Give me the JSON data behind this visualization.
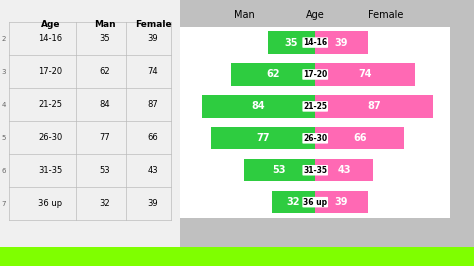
{
  "age_groups": [
    "36 up",
    "31-35",
    "26-30",
    "21-25",
    "17-20",
    "14-16"
  ],
  "man_values": [
    32,
    53,
    77,
    84,
    62,
    35
  ],
  "female_values": [
    39,
    43,
    66,
    87,
    74,
    39
  ],
  "man_color": "#2ECC40",
  "female_color": "#FF69B4",
  "man_label": "Man",
  "female_label": "Female",
  "age_label": "Age",
  "col_headers": [
    "Age",
    "Man",
    "Female"
  ],
  "row_data": [
    [
      "14-16",
      "35",
      "39"
    ],
    [
      "17-20",
      "62",
      "74"
    ],
    [
      "21-25",
      "84",
      "87"
    ],
    [
      "26-30",
      "77",
      "66"
    ],
    [
      "31-35",
      "53",
      "43"
    ],
    [
      "36 up",
      "32",
      "39"
    ]
  ],
  "green_bar_color": "#7FFF00",
  "fig_bg": "#c0c0c0",
  "spreadsheet_bg": "#f0f0f0",
  "chart_bg": "#ffffff",
  "grid_color": "#bbbbbb"
}
